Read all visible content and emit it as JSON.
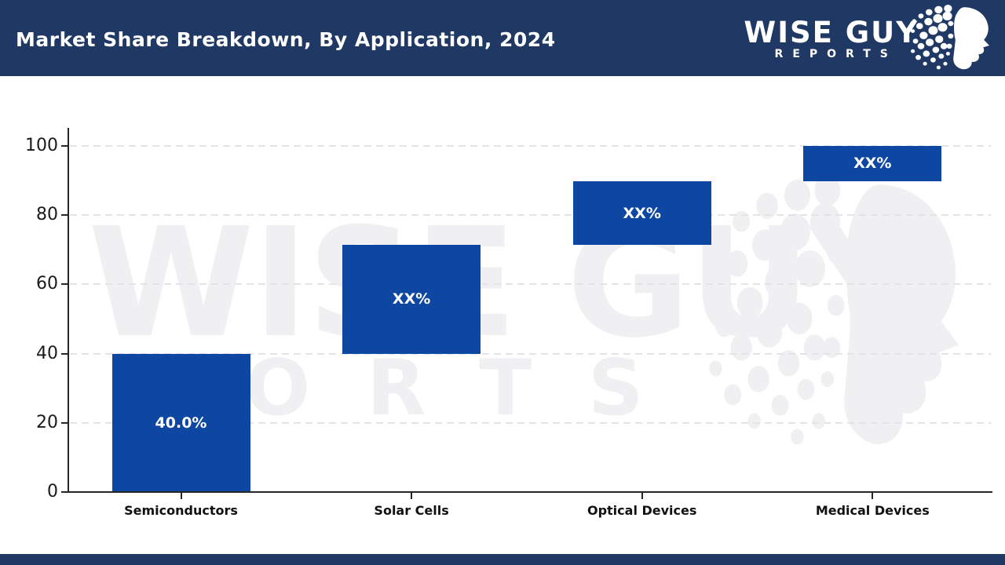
{
  "header": {
    "title": "Market Share Breakdown, By Application, 2024",
    "logo": {
      "line1": "WISE GUY",
      "line2": "REPORTS"
    }
  },
  "watermark": {
    "line1": "WISE GUY",
    "line2": "PORTS"
  },
  "colors": {
    "header_bg": "#1f3864",
    "footer_bg": "#1f3864",
    "bar": "#0d47a1",
    "bar_label": "#ffffff",
    "grid": "#e4e4e7",
    "axis": "#262626",
    "watermark": "#f0f0f2"
  },
  "chart_data": {
    "type": "bar",
    "subtype": "waterfall",
    "title": "Market Share Breakdown, By Application, 2024",
    "xlabel": "",
    "ylabel": "",
    "ylim": [
      0,
      100
    ],
    "yticks": [
      0,
      20,
      40,
      60,
      80,
      100
    ],
    "grid": "horizontal-dashed",
    "legend": "none",
    "categories": [
      "Semiconductors",
      "Solar Cells",
      "Optical Devices",
      "Medical Devices"
    ],
    "segments": [
      {
        "category": "Semiconductors",
        "start": 0,
        "end": 40,
        "value_label": "40.0%"
      },
      {
        "category": "Solar Cells",
        "start": 40,
        "end": 71.4,
        "value_label": "XX%"
      },
      {
        "category": "Optical Devices",
        "start": 71.4,
        "end": 89.8,
        "value_label": "XX%"
      },
      {
        "category": "Medical Devices",
        "start": 89.8,
        "end": 100,
        "value_label": "XX%"
      }
    ]
  }
}
